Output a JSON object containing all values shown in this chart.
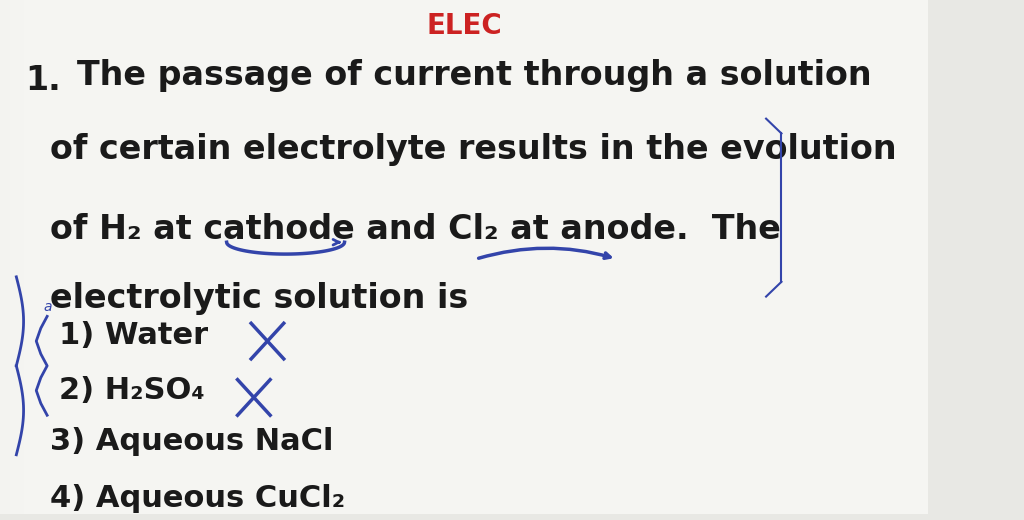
{
  "bg_color": "#e8e8e4",
  "page_color": "#f0f0ec",
  "title_text": "ELEC",
  "title_color": "#cc2222",
  "question_number": "1.",
  "text_color": "#1a1a1a",
  "handwritten_color": "#3344aa",
  "main_text_lines": [
    "The passage of current through a solution",
    "of certain electrolyte results in the evolution",
    "of H₂ at cathode and Cl₂ at anode.  The",
    "electrolytic solution is"
  ],
  "options": [
    "1) Water",
    "2) H₂SO₄",
    "3) Aqueous NaCl",
    "4) Aqueous CuCl₂"
  ],
  "font_size_main": 24,
  "font_size_options": 22,
  "font_family": "DejaVu Sans"
}
